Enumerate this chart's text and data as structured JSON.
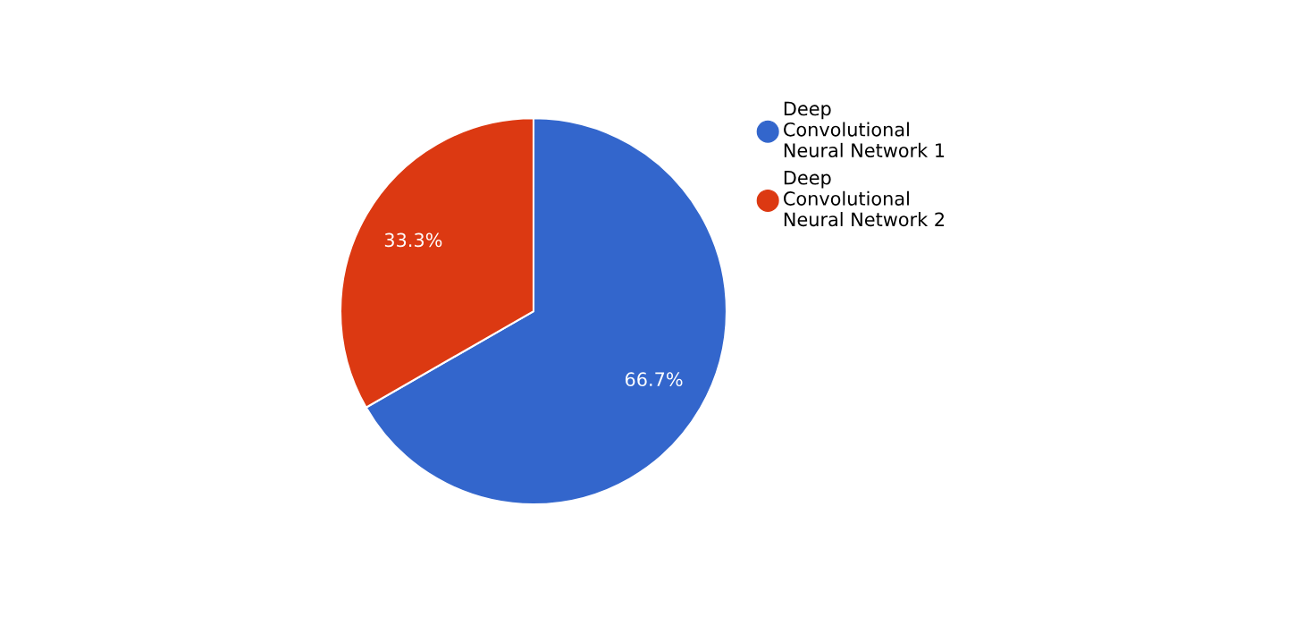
{
  "chart_data": {
    "type": "pie",
    "categories": [
      "Deep Convolutional Neural Network 1",
      "Deep Convolutional Neural Network 2"
    ],
    "values": [
      66.7,
      33.3
    ],
    "colors": [
      "#3366cc",
      "#dc3912"
    ],
    "value_labels": [
      "66.7%",
      "33.3%"
    ],
    "legend": "right"
  }
}
